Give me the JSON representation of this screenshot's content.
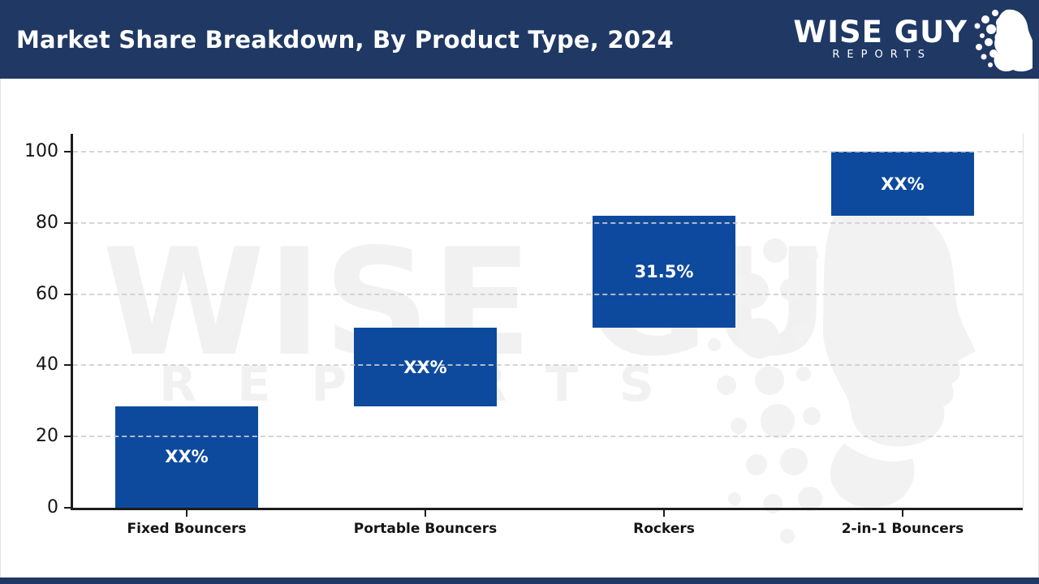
{
  "header": {
    "title": "Market Share Breakdown, By Product Type, 2024",
    "logo": {
      "name": "WISE GUY",
      "subtitle": "REPORTS"
    }
  },
  "watermark": {
    "word": "WISE GUY",
    "subtitle": "REPORTS"
  },
  "colors": {
    "header_navy": "#1f3864",
    "bar_blue": "#0d4a9e",
    "grid_gray": "#cecece",
    "watermark_gray": "#f1f1f1",
    "label_white": "#ffffff",
    "axis_black": "#1c1c1c"
  },
  "chart_data": {
    "type": "bar",
    "subtype": "floating-segment (waterfall-style market share breakdown)",
    "title": "Market Share Breakdown, By Product Type, 2024",
    "categories": [
      "Fixed Bouncers",
      "Portable Bouncers",
      "Rockers",
      "2-in-1 Bouncers"
    ],
    "segments": [
      {
        "category": "Fixed Bouncers",
        "start": 0,
        "end": 28.5,
        "label": "XX%"
      },
      {
        "category": "Portable Bouncers",
        "start": 28.5,
        "end": 50.5,
        "label": "XX%"
      },
      {
        "category": "Rockers",
        "start": 50.5,
        "end": 82,
        "label": "31.5%",
        "value": 31.5
      },
      {
        "category": "2-in-1 Bouncers",
        "start": 82,
        "end": 100,
        "label": "XX%"
      }
    ],
    "xlabel": "",
    "ylabel": "",
    "ylim": [
      0,
      100
    ],
    "yticks": [
      0,
      20,
      40,
      60,
      80,
      100
    ],
    "grid": "horizontal dashed, drawn above bars",
    "legend": "none",
    "bar_color": "#0d4a9e",
    "value_label_color": "#ffffff"
  }
}
